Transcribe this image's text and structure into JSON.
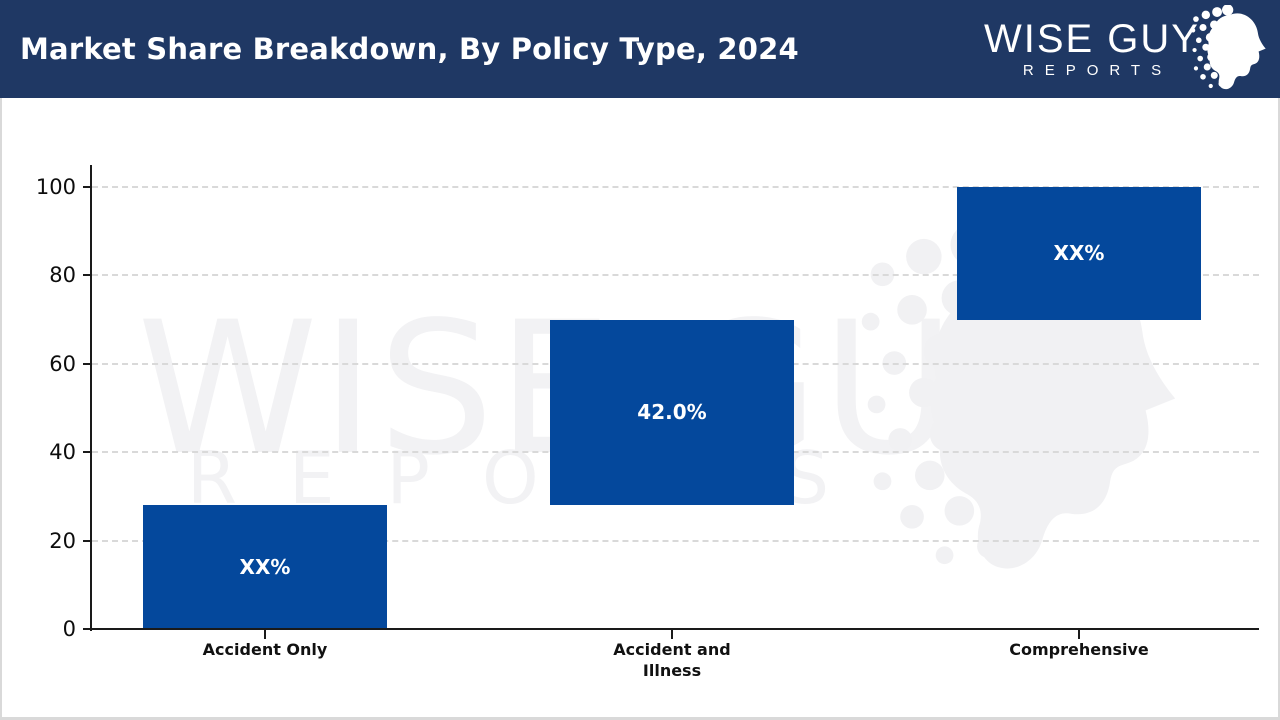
{
  "header": {
    "title": "Market Share Breakdown, By Policy Type, 2024",
    "logo": {
      "line1": "WISE GUY",
      "line2": "REPORTS"
    }
  },
  "watermark": {
    "line1": "WISE GUY",
    "line2": "REPORTS"
  },
  "chart_data": {
    "type": "bar",
    "subtype": "stacked-waterfall-breakdown",
    "title": "Market Share Breakdown, By Policy Type, 2024",
    "categories": [
      "Accident Only",
      "Accident and Illness",
      "Comprehensive"
    ],
    "bars": [
      {
        "category": "Accident Only",
        "start": 0,
        "end": 28,
        "value_label": "XX%"
      },
      {
        "category": "Accident and Illness",
        "start": 28,
        "end": 70,
        "value_label": "42.0%"
      },
      {
        "category": "Comprehensive",
        "start": 70,
        "end": 100,
        "value_label": "XX%"
      }
    ],
    "ylim": [
      0,
      100
    ],
    "yticks": [
      0,
      20,
      40,
      60,
      80,
      100
    ],
    "xlabel": "",
    "ylabel": "",
    "grid": "horizontal-dashed",
    "legend": "none",
    "bar_color": "#04489c",
    "bar_label_color": "#ffffff"
  },
  "colors": {
    "header_bg": "#1f3864",
    "bar": "#04489c",
    "axis": "#1a1a1a",
    "grid": "#d9d9d9",
    "watermark": "#f2f2f4"
  }
}
